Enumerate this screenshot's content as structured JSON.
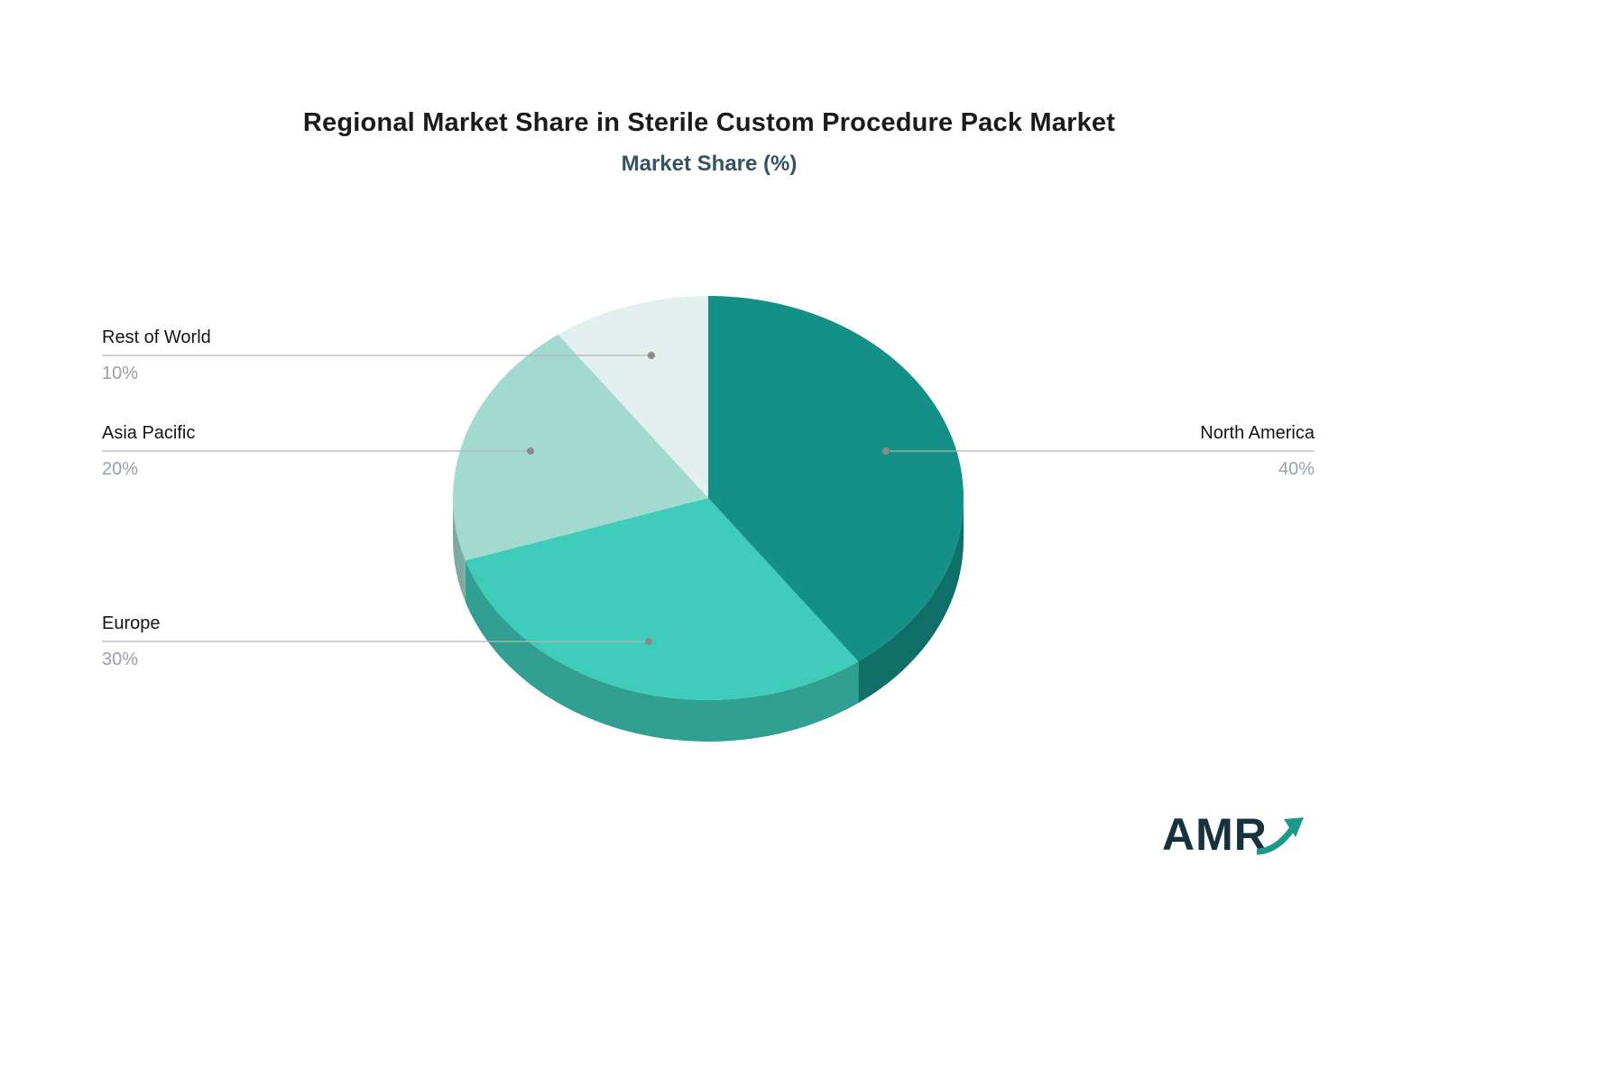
{
  "chart_data": {
    "type": "pie",
    "title": "Regional Market Share in Sterile Custom Procedure Pack Market",
    "subtitle": "Market Share (%)",
    "unit": "%",
    "direction": "clockwise",
    "start_angle_deg": 0,
    "legend_position": "none",
    "labels_as_callouts": true,
    "categories": [
      "North America",
      "Europe",
      "Asia Pacific",
      "Rest of World"
    ],
    "values": [
      40,
      30,
      20,
      10
    ],
    "points": [
      {
        "label": "North America",
        "value": 40,
        "display": "40%",
        "color": "#149086",
        "side": "right"
      },
      {
        "label": "Europe",
        "value": 30,
        "display": "30%",
        "color": "#3fccba",
        "side": "left"
      },
      {
        "label": "Asia Pacific",
        "value": 20,
        "display": "20%",
        "color": "#a2dad0",
        "side": "left"
      },
      {
        "label": "Rest of World",
        "value": 10,
        "display": "10%",
        "color": "#e4f0ee",
        "side": "left"
      }
    ],
    "callout_line_color": "#b5b5b5",
    "callout_dot_color": "#8a8a8a",
    "label_color": "#151515",
    "value_color": "#9aa0a6"
  },
  "branding": {
    "logo_text": "AMR",
    "logo_color": "#16323c",
    "arrow_color": "#1b9a8c"
  }
}
